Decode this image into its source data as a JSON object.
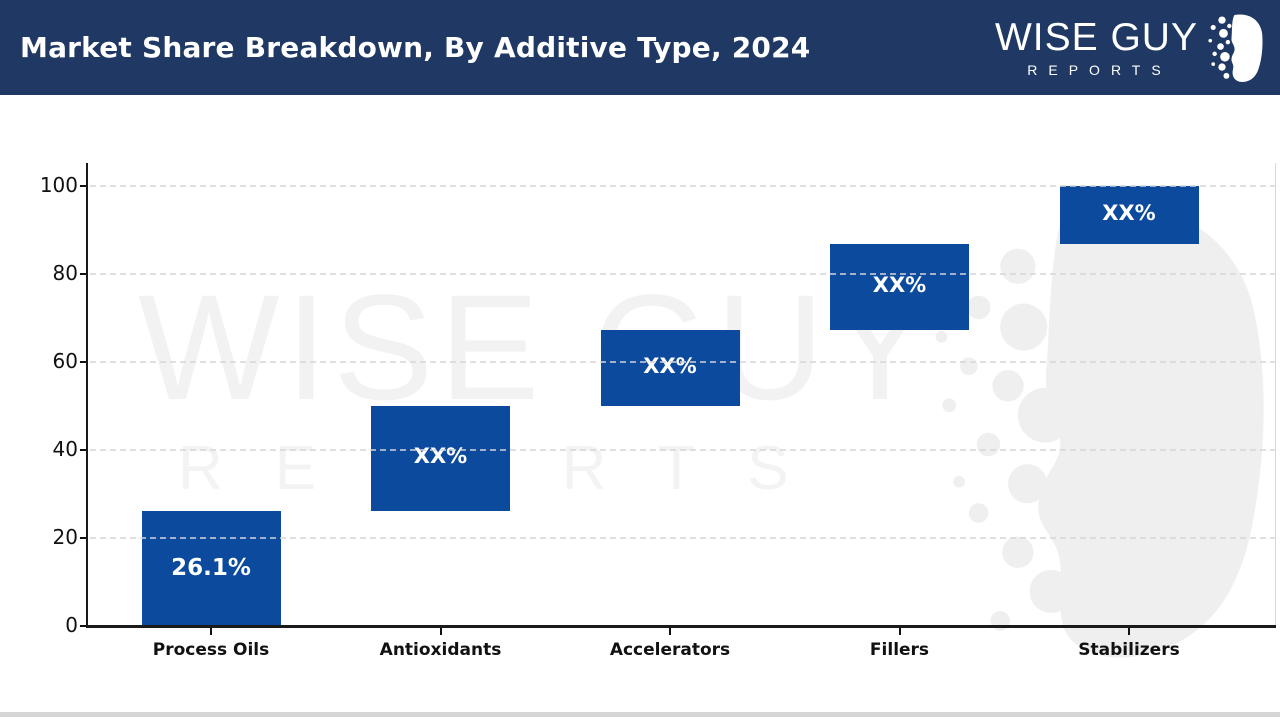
{
  "header": {
    "title": "Market Share Breakdown, By Additive Type, 2024",
    "bg_color": "#1f3864",
    "logo": {
      "line1": "WISE GUY",
      "line2": "REPORTS",
      "head_icon": "head-profile-dots-icon",
      "color": "#ffffff"
    }
  },
  "watermark": {
    "line1": "WISE GUY",
    "line2": "REPORTS",
    "head_icon": "head-profile-dots-icon",
    "color": "#f2f2f2"
  },
  "chart_data": {
    "type": "bar",
    "subtype": "waterfall",
    "title": "Market Share Breakdown, By Additive Type, 2024",
    "xlabel": "",
    "ylabel": "",
    "categories": [
      "Process Oils",
      "Antioxidants",
      "Accelerators",
      "Fillers",
      "Stabilizers"
    ],
    "segments": [
      {
        "category": "Process Oils",
        "start": 0,
        "end": 26.1,
        "label": "26.1%"
      },
      {
        "category": "Antioxidants",
        "start": 26.1,
        "end": 50.1,
        "label": "XX%"
      },
      {
        "category": "Accelerators",
        "start": 50.1,
        "end": 67.3,
        "label": "XX%"
      },
      {
        "category": "Fillers",
        "start": 67.3,
        "end": 86.9,
        "label": "XX%"
      },
      {
        "category": "Stabilizers",
        "start": 86.9,
        "end": 100,
        "label": "XX%"
      }
    ],
    "yticks": [
      0,
      20,
      40,
      60,
      80,
      100
    ],
    "ylim": [
      0,
      105
    ],
    "grid": true,
    "grid_style": "dashed",
    "legend": "none",
    "bar_color": "#0c4a9e",
    "bar_label_color": "#ffffff",
    "axis_color": "#1a1a1a"
  },
  "footer": {
    "strip_color": "#d5d5d5"
  }
}
